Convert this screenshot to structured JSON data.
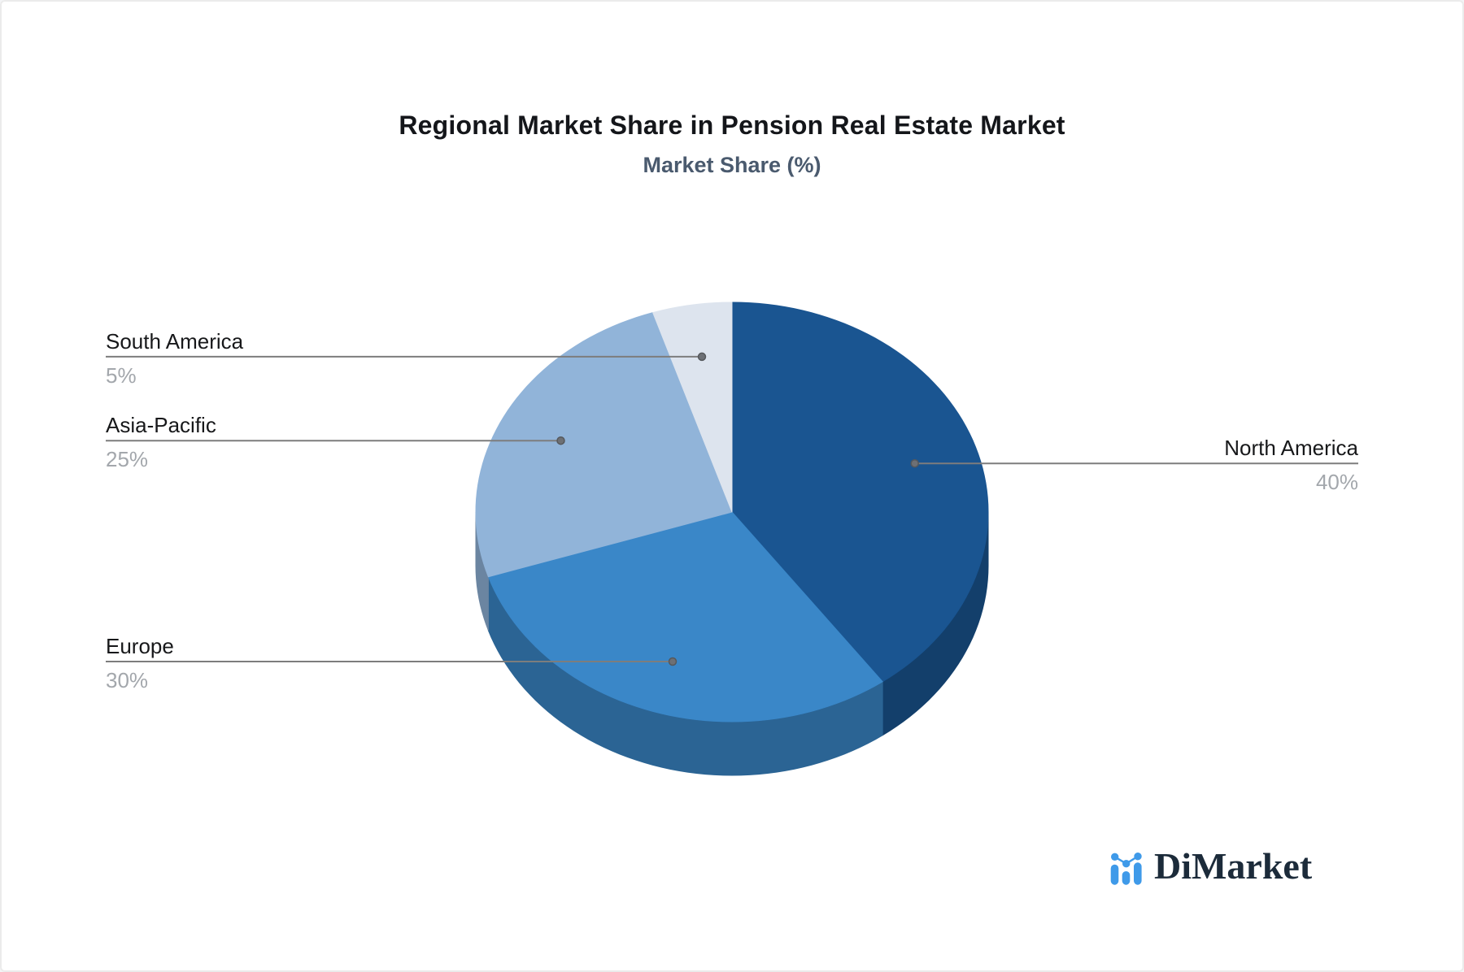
{
  "chart_data": {
    "type": "pie",
    "title": "Regional Market Share in Pension Real Estate Market",
    "subtitle": "Market Share (%)",
    "unit": "%",
    "style": "3d",
    "start_angle_deg": 0,
    "direction": "clockwise",
    "legend_position": "none",
    "labels_style": "connector lines with region name and percent value",
    "slices": [
      {
        "label": "North America",
        "value": 40,
        "percent_label": "40%",
        "color": "#1a5591"
      },
      {
        "label": "Europe",
        "value": 30,
        "percent_label": "30%",
        "color": "#3a87c8"
      },
      {
        "label": "Asia-Pacific",
        "value": 25,
        "percent_label": "25%",
        "color": "#91b4d9"
      },
      {
        "label": "South America",
        "value": 5,
        "percent_label": "5%",
        "color": "#dde4ee"
      }
    ]
  },
  "logo": {
    "text": "DiMarket",
    "icon": "bar-chart-icon",
    "text_color": "#1c2b3a",
    "icon_color": "#3f9ae9"
  },
  "colors": {
    "background": "#ffffff",
    "title_text": "#14161a",
    "subtitle_text": "#4a5a6e",
    "label_text": "#17181a",
    "value_text": "#a3a7ac",
    "connector_line": "#7d7d7d",
    "connector_dot": "#6d7075"
  }
}
